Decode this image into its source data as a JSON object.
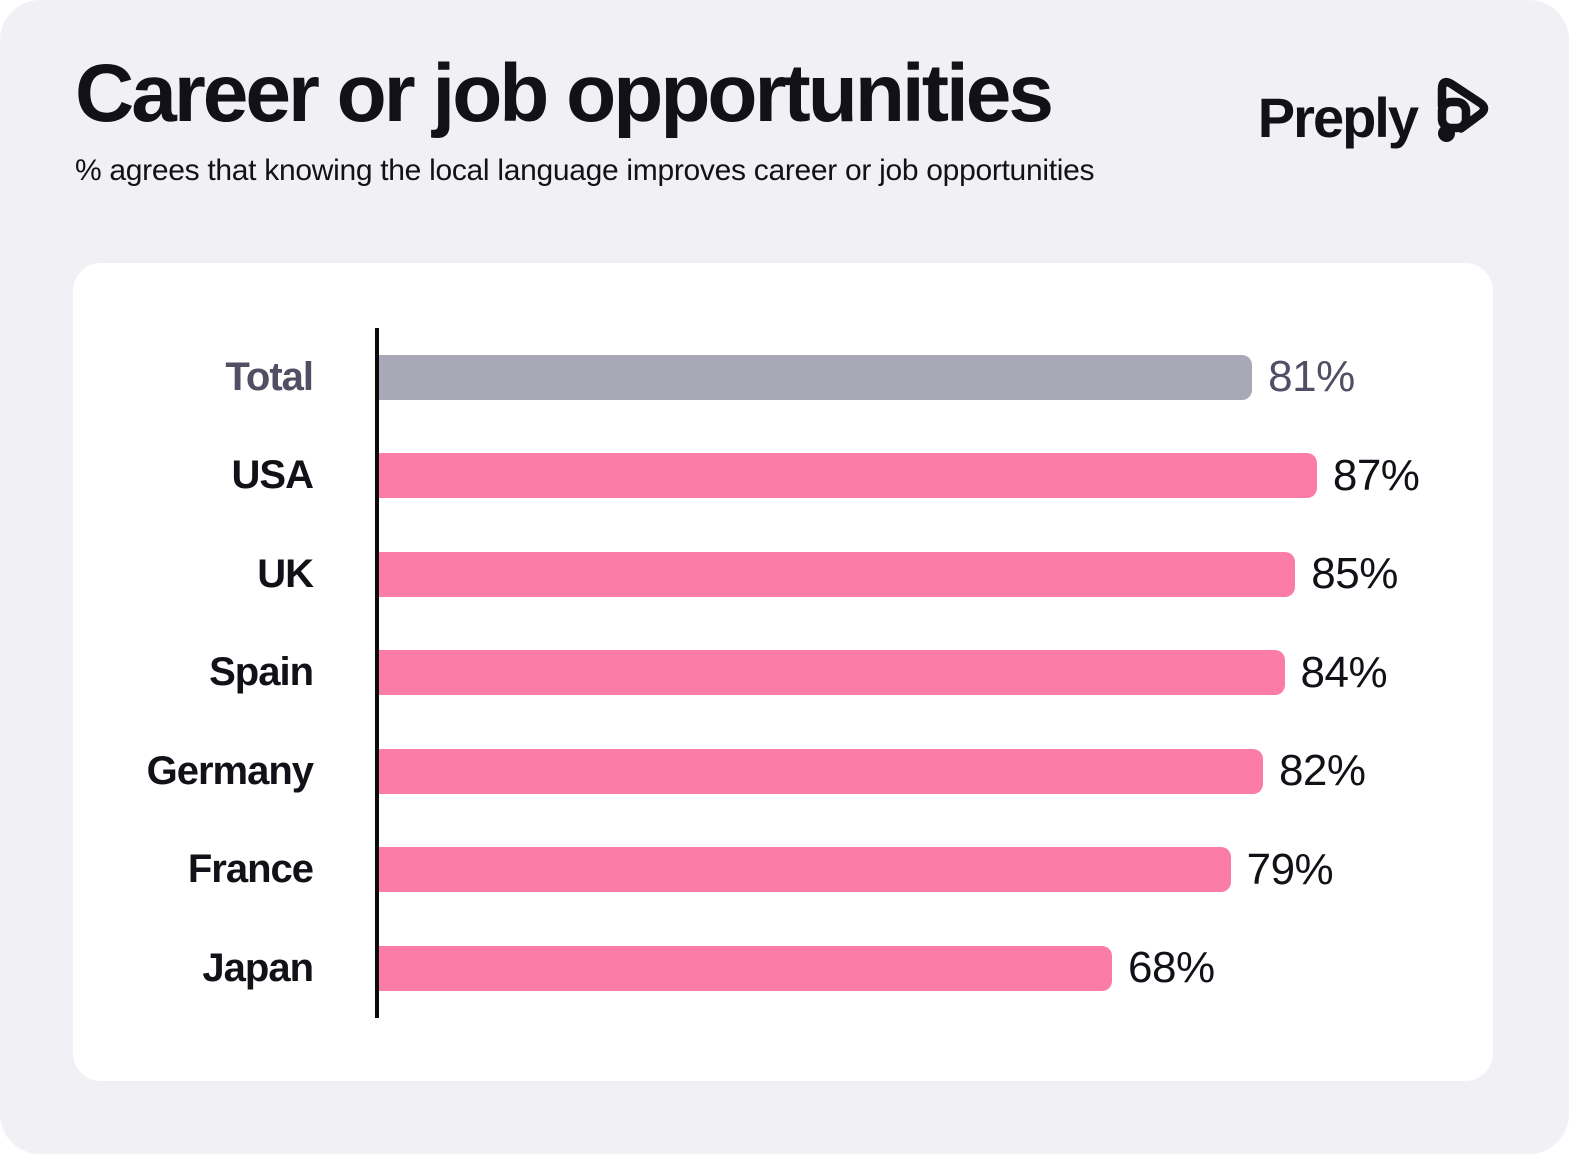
{
  "header": {
    "title": "Career or job opportunities",
    "subtitle": "% agrees that knowing the local language improves career or job opportunities",
    "brand": "Preply"
  },
  "colors": {
    "page_bg": "#F1F0F5",
    "card_bg": "#FFFFFF",
    "text_dark": "#121117",
    "axis": "#0A0A0A",
    "pink_bar": "#FC7CA8",
    "neutral_bar": "#A9A8B6",
    "neutral_text": "#514F63"
  },
  "chart_data": {
    "type": "bar",
    "orientation": "horizontal",
    "title": "Career or job opportunities",
    "subtitle": "% agrees that knowing the local language improves career or job opportunities",
    "categories": [
      "Total",
      "USA",
      "UK",
      "Spain",
      "Germany",
      "France",
      "Japan"
    ],
    "values": [
      81,
      87,
      85,
      84,
      82,
      79,
      68
    ],
    "value_labels": [
      "81%",
      "87%",
      "85%",
      "84%",
      "82%",
      "79%",
      "68%"
    ],
    "variants": [
      "neutral",
      "pink",
      "pink",
      "pink",
      "pink",
      "pink",
      "pink"
    ],
    "unit": "%",
    "xlim": [
      0,
      100
    ],
    "grid": false,
    "legend": false
  }
}
